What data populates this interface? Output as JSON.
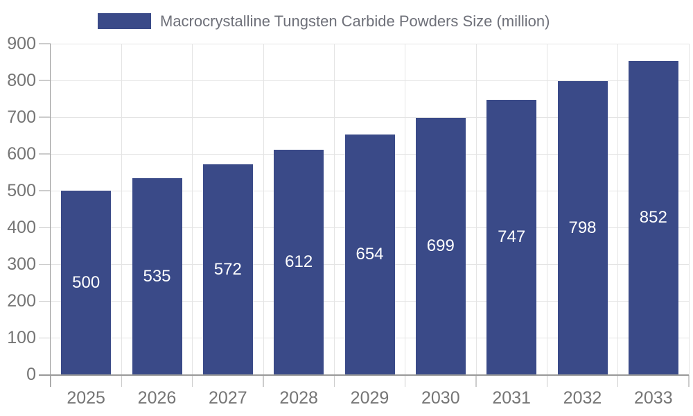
{
  "legend": {
    "label": "Macrocrystalline Tungsten Carbide Powders Size (million)"
  },
  "chart_data": {
    "type": "bar",
    "title": "Macrocrystalline Tungsten Carbide Powders Size (million)",
    "categories": [
      "2025",
      "2026",
      "2027",
      "2028",
      "2029",
      "2030",
      "2031",
      "2032",
      "2033"
    ],
    "values": [
      500,
      535,
      572,
      612,
      654,
      699,
      747,
      798,
      852
    ],
    "series": [
      {
        "name": "Macrocrystalline Tungsten Carbide Powders Size (million)",
        "values": [
          500,
          535,
          572,
          612,
          654,
          699,
          747,
          798,
          852
        ]
      }
    ],
    "xlabel": "",
    "ylabel": "",
    "ylim": [
      0,
      900
    ],
    "yticks": [
      0,
      100,
      200,
      300,
      400,
      500,
      600,
      700,
      800,
      900
    ],
    "grid": true,
    "value_labels": "inside-center",
    "legend_position": "top",
    "colors": {
      "bar": "#3A4A88",
      "value_label": "#FFFFFF",
      "axis_text": "#757575",
      "legend_text": "#6E7079",
      "gridline": "#E4E4E4",
      "axis_line": "#999999",
      "tick": "#CCCCCC",
      "background": "#FFFFFF"
    }
  }
}
